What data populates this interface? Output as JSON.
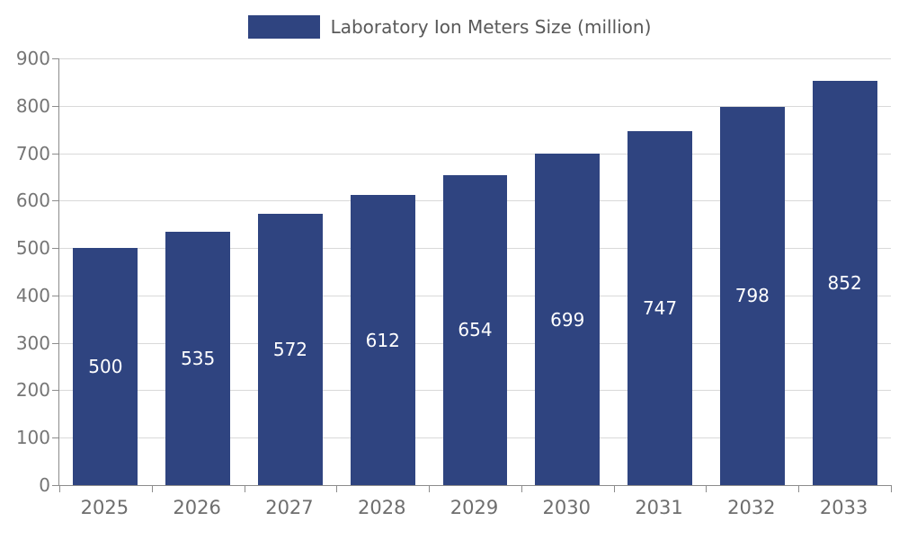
{
  "chart_data": {
    "type": "bar",
    "title": "Laboratory Ion Meters Size (million)",
    "categories": [
      "2025",
      "2026",
      "2027",
      "2028",
      "2029",
      "2030",
      "2031",
      "2032",
      "2033"
    ],
    "values": [
      500,
      535,
      572,
      612,
      654,
      699,
      747,
      798,
      852
    ],
    "xlabel": "",
    "ylabel": "",
    "ylim": [
      0,
      900
    ],
    "ytick_step": 100,
    "ytick_labels": [
      "0",
      "100",
      "200",
      "300",
      "400",
      "500",
      "600",
      "700",
      "800",
      "900"
    ],
    "grid": true,
    "legend_position": "top-center",
    "value_labels": "inside-center-white"
  },
  "colors": {
    "bar": "#2f4480",
    "value_label": "#ffffff",
    "grid_line": "#d9d9d9",
    "axis_line": "#8c8c8c",
    "tick_mark": "#8c8c8c",
    "ytick_label": "#757575",
    "xtick_label": "#6e6e6e",
    "legend_text": "#595959",
    "background": "#ffffff"
  }
}
